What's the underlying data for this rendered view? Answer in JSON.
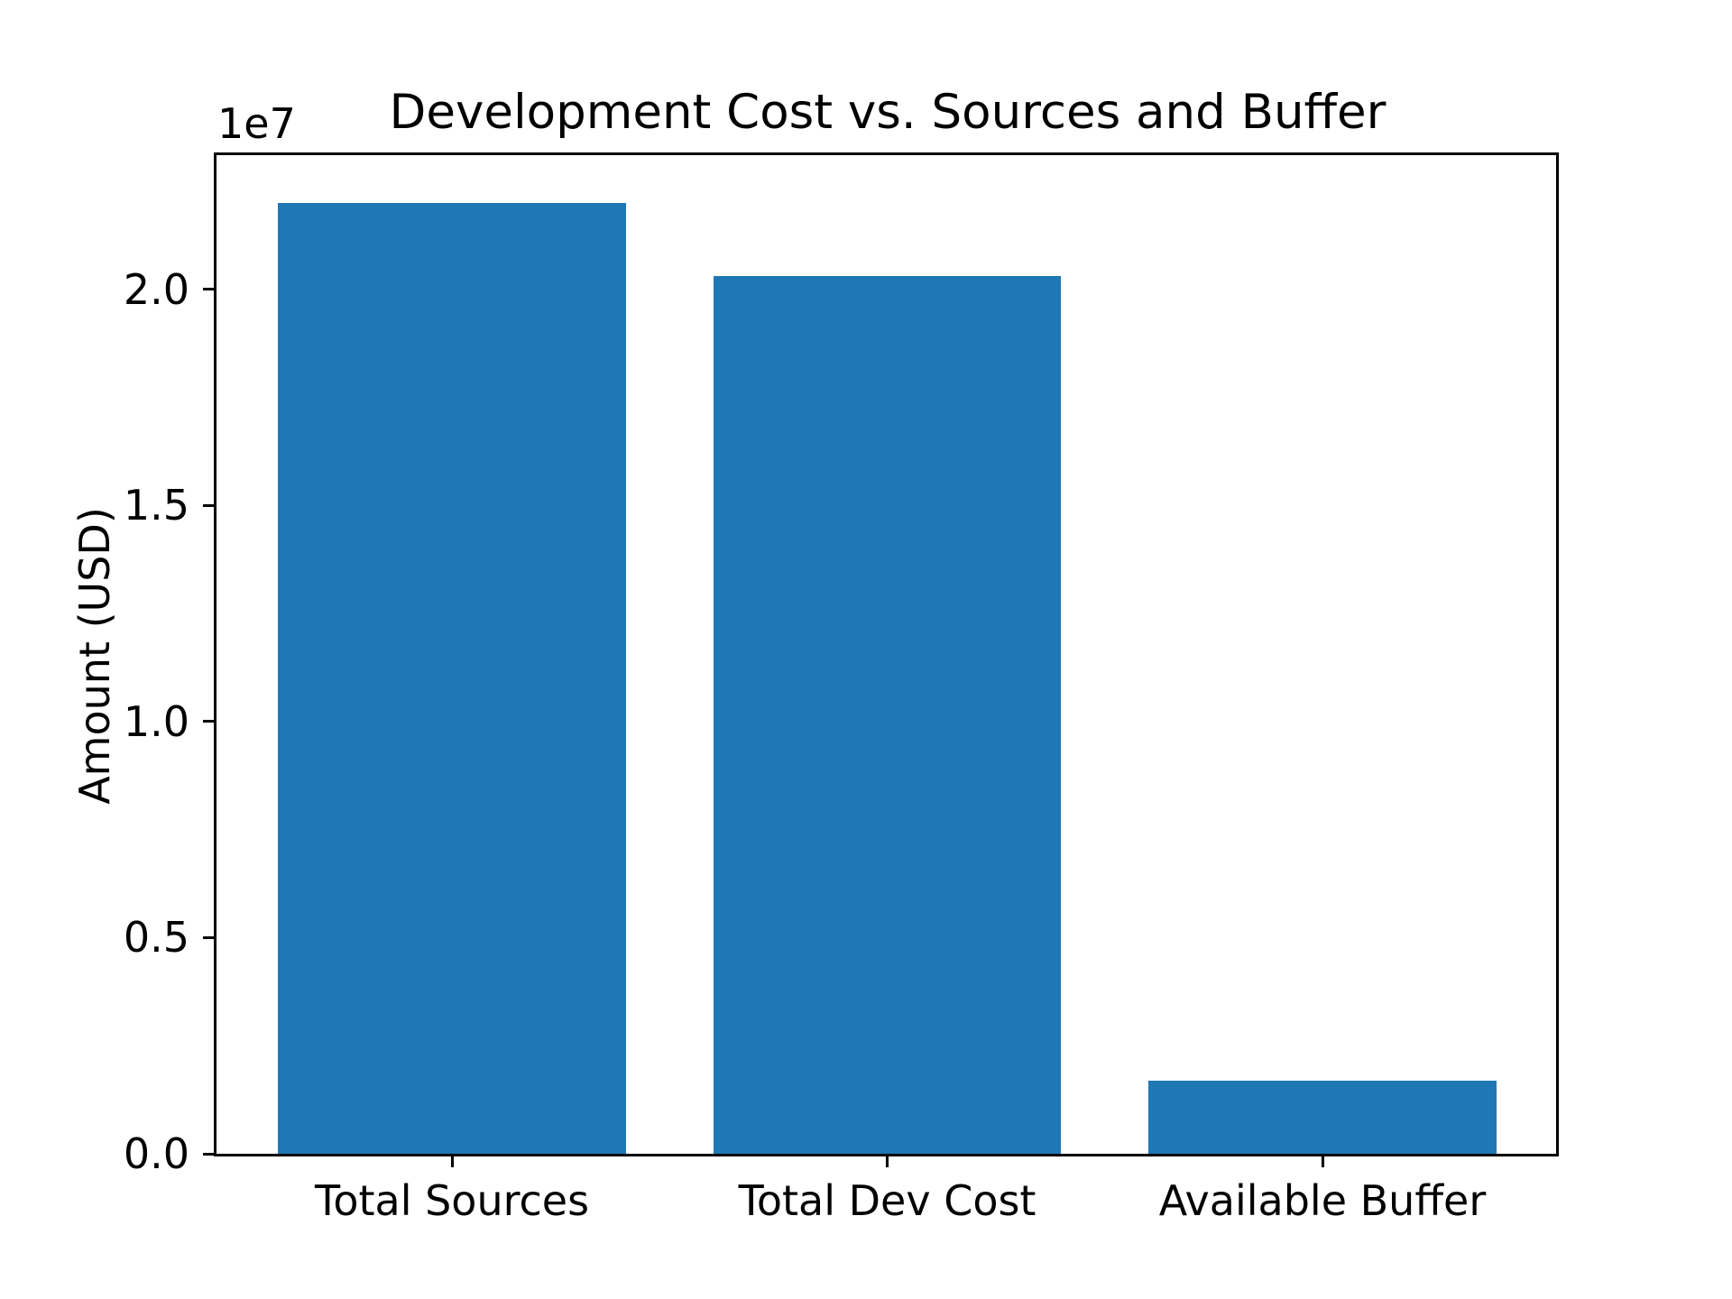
{
  "chart_data": {
    "type": "bar",
    "title": "Development Cost vs. Sources and Buffer",
    "ylabel": "Amount (USD)",
    "xlabel": "",
    "offset_text": "1e7",
    "categories": [
      "Total Sources",
      "Total Dev Cost",
      "Available Buffer"
    ],
    "values": [
      22000000,
      20300000,
      1700000
    ],
    "ylim": [
      0,
      23100000
    ],
    "yticks": [
      0,
      5000000,
      10000000,
      15000000,
      20000000
    ],
    "ytick_labels": [
      "0.0",
      "0.5",
      "1.0",
      "1.5",
      "2.0"
    ],
    "bar_color": "#1f77b4",
    "grid": false,
    "legend": null
  }
}
